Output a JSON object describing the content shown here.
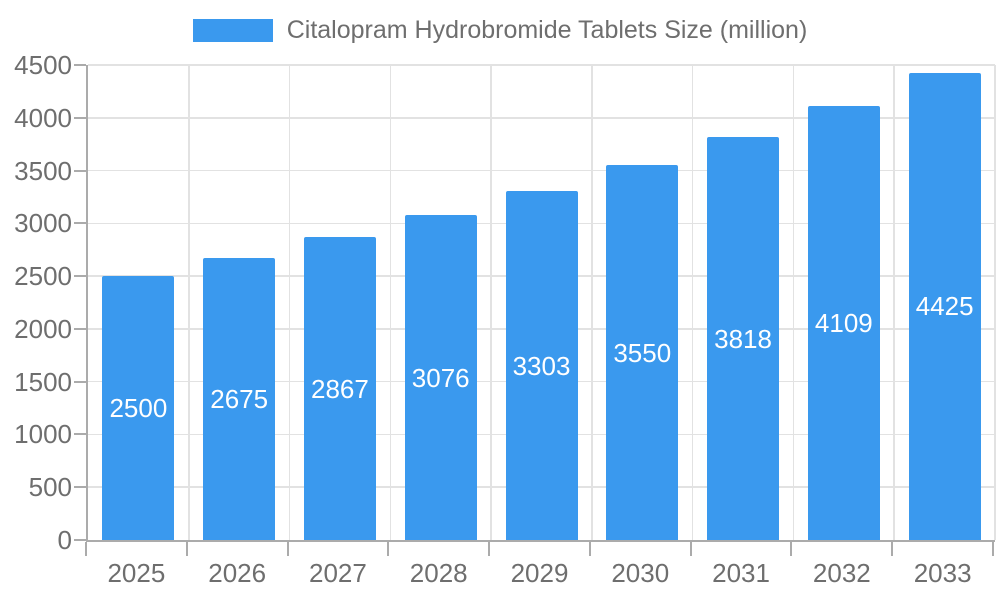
{
  "legend": {
    "label": "Citalopram Hydrobromide Tablets Size (million)"
  },
  "chart_data": {
    "type": "bar",
    "title": "Citalopram Hydrobromide Tablets Size (million)",
    "categories": [
      "2025",
      "2026",
      "2027",
      "2028",
      "2029",
      "2030",
      "2031",
      "2032",
      "2033"
    ],
    "values": [
      2500,
      2675,
      2867,
      3076,
      3303,
      3550,
      3818,
      4109,
      4425
    ],
    "xlabel": "",
    "ylabel": "",
    "ylim": [
      0,
      4500
    ],
    "yticks": [
      0,
      500,
      1000,
      1500,
      2000,
      2500,
      3000,
      3500,
      4000,
      4500
    ],
    "grid": true,
    "legend_position": "top-center",
    "value_label_position": "center-of-bar"
  },
  "colors": {
    "bar": "#3a99ee",
    "axis_text": "#6e6e6e",
    "legend_text": "#6e6e6e",
    "grid_line": "#e2e2e2",
    "axis_line": "#ababab",
    "value_label": "#ffffff",
    "background": "#ffffff"
  }
}
